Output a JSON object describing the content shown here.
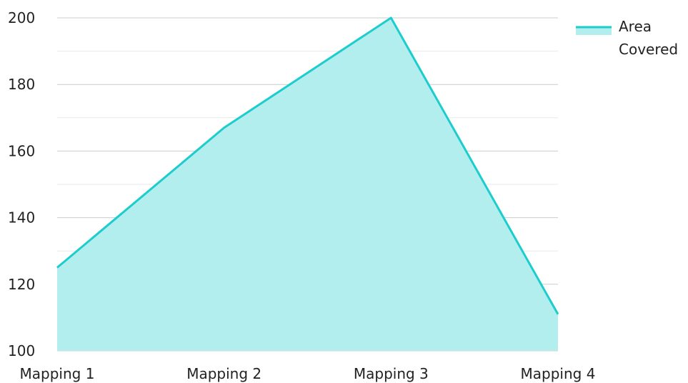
{
  "chart_data": {
    "type": "area",
    "categories": [
      "Mapping 1",
      "Mapping 2",
      "Mapping 3",
      "Mapping 4"
    ],
    "series": [
      {
        "name": "Area Covered",
        "values": [
          125,
          167,
          200,
          111
        ]
      }
    ],
    "title": "",
    "xlabel": "",
    "ylabel": "",
    "ylim": [
      100,
      200
    ],
    "yticks": [
      "100",
      "120",
      "140",
      "160",
      "180",
      "200"
    ],
    "grid": true,
    "legend_position": "top-right",
    "legend_lines": [
      "Area",
      "Covered"
    ],
    "colors": {
      "line": "#1dcdcd",
      "fill": "#b2eeee",
      "grid": "#cccccc",
      "minor_grid": "#e8e8e8",
      "text": "#222222"
    }
  }
}
